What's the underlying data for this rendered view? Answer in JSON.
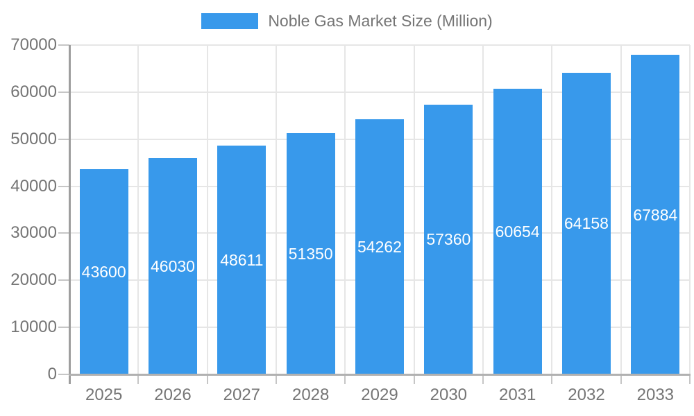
{
  "chart_data": {
    "type": "bar",
    "title": "Noble Gas Market Size (Million)",
    "categories": [
      "2025",
      "2026",
      "2027",
      "2028",
      "2029",
      "2030",
      "2031",
      "2032",
      "2033"
    ],
    "values": [
      43600,
      46030,
      48611,
      51350,
      54262,
      57360,
      60654,
      64158,
      67884
    ],
    "value_labels": [
      "43600",
      "46030",
      "48611",
      "51350",
      "54262",
      "57360",
      "60654",
      "64158",
      "67884"
    ],
    "xlabel": "",
    "ylabel": "",
    "ylim": [
      0,
      70000
    ],
    "y_ticks": [
      0,
      10000,
      20000,
      30000,
      40000,
      50000,
      60000,
      70000
    ],
    "grid": true,
    "legend_position": "top-center",
    "value_label_position": "center-of-bar",
    "colors": {
      "bar": "#3899EB",
      "grid": "#E6E6E6",
      "y_axis_line": "#9E9E9E",
      "x_axis_line": "#B1B1B1",
      "tick": "#C6C6C6",
      "axis_text": "#757575",
      "legend_text": "#757575",
      "value_label_text": "#FFFFFF",
      "background": "#FFFFFF"
    }
  }
}
